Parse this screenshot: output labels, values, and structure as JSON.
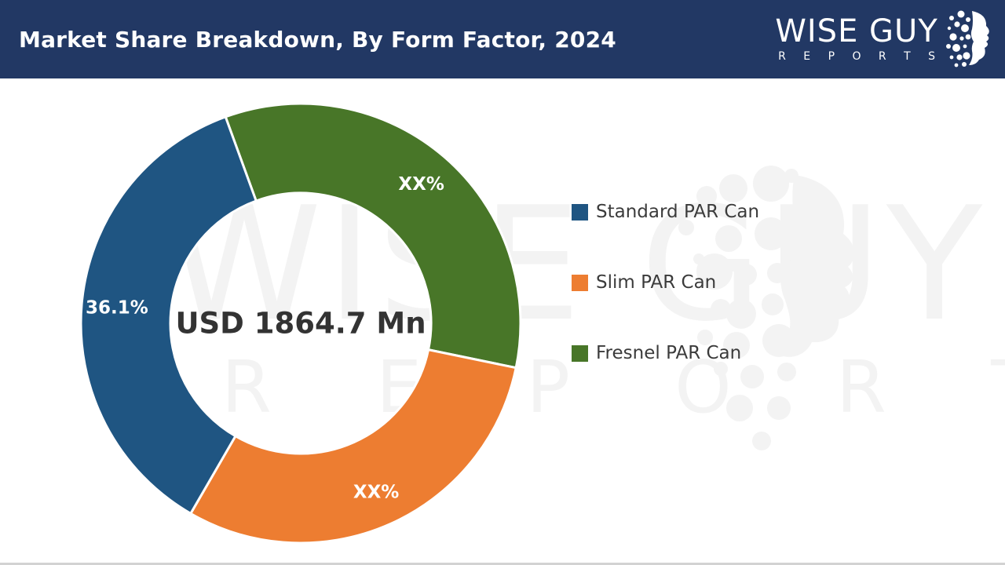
{
  "header": {
    "title": "Market Share Breakdown, By Form Factor, 2024",
    "logo": {
      "line1": "WISE GUY",
      "line2": "REPORTS"
    }
  },
  "watermark": {
    "line1": "WISE GUY",
    "line2": "REPORTS"
  },
  "chart_data": {
    "type": "pie",
    "subtype": "donut",
    "title": "Market Share Breakdown, By Form Factor, 2024",
    "center_label": "USD 1864.7 Mn",
    "start_angle_deg": -20,
    "slices": [
      {
        "label": "Fresnel PAR Can",
        "value": 33.8,
        "display": "XX%",
        "color": "#487628"
      },
      {
        "label": "Slim PAR Can",
        "value": 30.1,
        "display": "XX%",
        "color": "#ed7d31"
      },
      {
        "label": "Standard PAR Can",
        "value": 36.1,
        "display": "36.1%",
        "color": "#1f5582"
      }
    ],
    "legend_position": "right"
  },
  "legend": {
    "items": [
      {
        "label": "Standard PAR Can",
        "color": "#1f5582"
      },
      {
        "label": "Slim PAR Can",
        "color": "#ed7d31"
      },
      {
        "label": "Fresnel PAR Can",
        "color": "#487628"
      }
    ]
  },
  "colors": {
    "header_bg": "#223864",
    "watermark": "#f3f3f3",
    "center_text": "#333333"
  }
}
